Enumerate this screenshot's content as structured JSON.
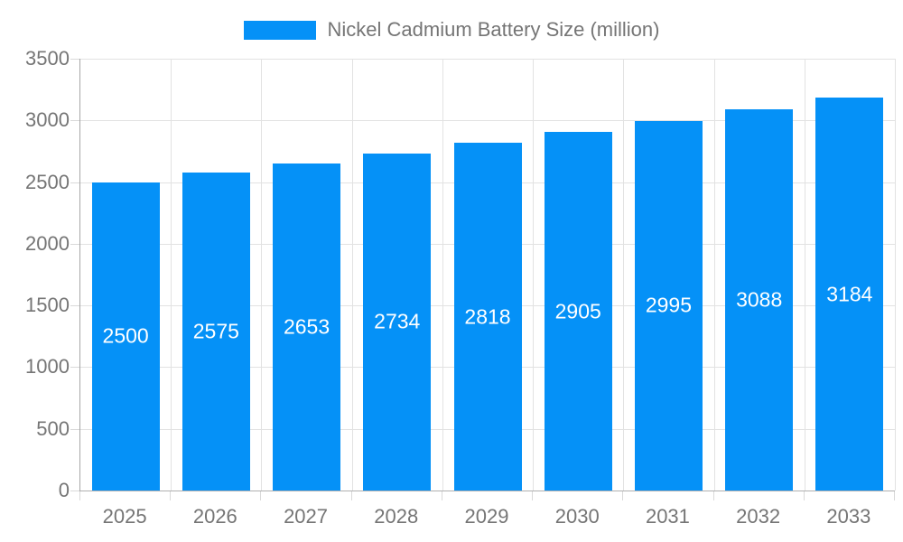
{
  "chart_data": {
    "type": "bar",
    "title": "Nickel Cadmium Battery Size (million)",
    "legend": [
      "Nickel Cadmium Battery Size (million)"
    ],
    "legend_position": "top",
    "categories": [
      "2025",
      "2026",
      "2027",
      "2028",
      "2029",
      "2030",
      "2031",
      "2032",
      "2033"
    ],
    "values": [
      2500,
      2575,
      2653,
      2734,
      2818,
      2905,
      2995,
      3088,
      3184
    ],
    "xlabel": "",
    "ylabel": "",
    "ylim": [
      0,
      3500
    ],
    "yticks": [
      0,
      500,
      1000,
      1500,
      2000,
      2500,
      3000,
      3500
    ],
    "grid": true,
    "value_labels": "inside-center",
    "colors": {
      "bar": "#0591f7",
      "value_label": "#ffffff",
      "axis_text": "#757575",
      "gridline": "#e2e2e2",
      "axis_line": "#a6a6a6",
      "background": "#ffffff"
    }
  }
}
